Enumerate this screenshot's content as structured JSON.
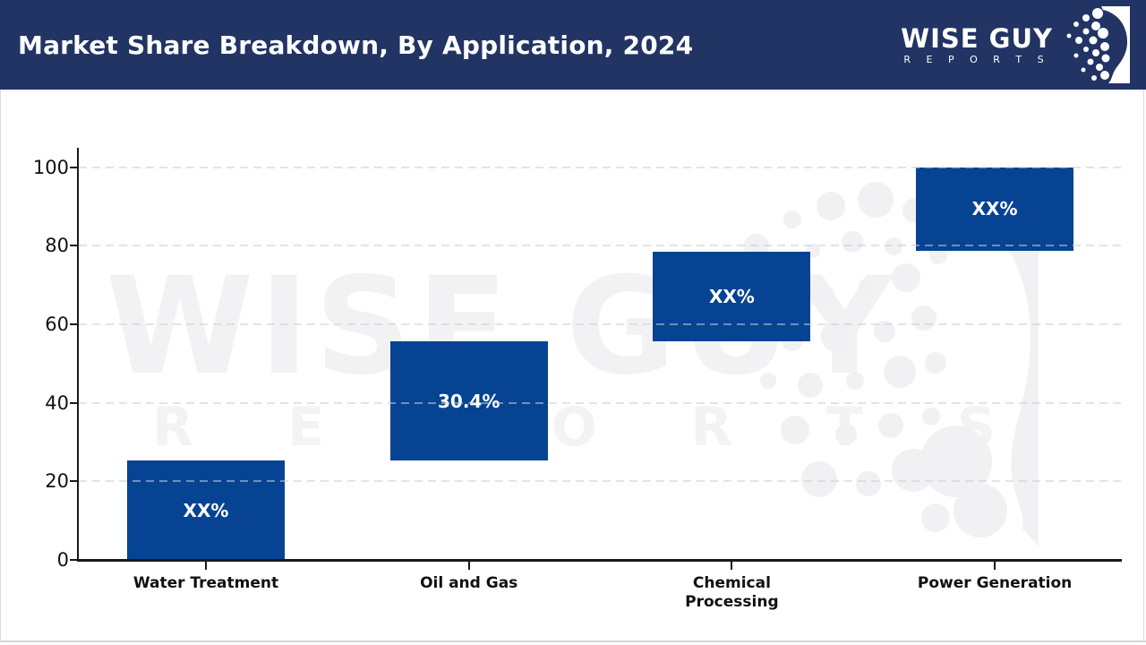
{
  "header": {
    "title": "Market Share Breakdown, By Application, 2024",
    "logo": {
      "line1": "WISE GUY",
      "line2": "R E P O R T S"
    }
  },
  "watermark": {
    "line1": "WISE GUY",
    "line2": "R E P O R T S"
  },
  "colors": {
    "header_bg": "#213464",
    "bar": "#064393",
    "bar_label": "#ffffff",
    "grid": "#dfe2e7",
    "axis": "#1a1a1a",
    "watermark": "#f2f2f4",
    "frame_border": "#d5d5d5"
  },
  "chart_data": {
    "type": "bar",
    "variant": "stacked-waterfall-segments",
    "title": "Market Share Breakdown, By Application, 2024",
    "categories": [
      "Water Treatment",
      "Oil and Gas",
      "Chemical Processing",
      "Power Generation"
    ],
    "segments": [
      {
        "category": "Water Treatment",
        "lines": [
          "Water Treatment"
        ],
        "start": 0,
        "end": 25.2,
        "label": "XX%"
      },
      {
        "category": "Oil and Gas",
        "lines": [
          "Oil and Gas"
        ],
        "start": 25.2,
        "end": 55.6,
        "label": "30.4%",
        "value": 30.4
      },
      {
        "category": "Chemical Processing",
        "lines": [
          "Chemical",
          "Processing"
        ],
        "start": 55.7,
        "end": 78.5,
        "label": "XX%"
      },
      {
        "category": "Power Generation",
        "lines": [
          "Power Generation"
        ],
        "start": 78.6,
        "end": 100,
        "label": "XX%"
      }
    ],
    "yticks": [
      0,
      20,
      40,
      60,
      80,
      100
    ],
    "ylim": [
      0,
      100
    ],
    "xlabel": "",
    "ylabel": "",
    "grid": "dashed-horizontal",
    "legend": "none"
  }
}
